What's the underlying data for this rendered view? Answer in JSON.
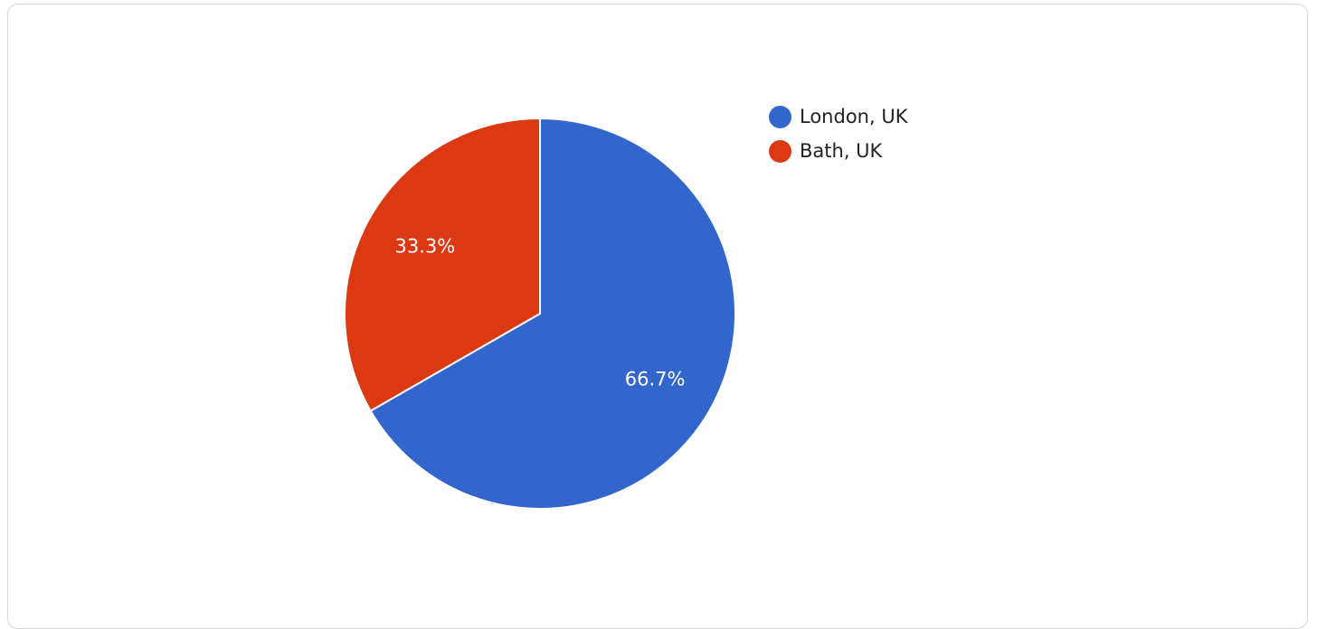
{
  "chart_data": {
    "type": "pie",
    "title": "",
    "categories": [
      "London, UK",
      "Bath, UK"
    ],
    "values": [
      66.7,
      33.3
    ],
    "labels": [
      "66.7%",
      "33.3%"
    ],
    "colors": [
      "#3366cc",
      "#dc3912"
    ],
    "legend_position": "right",
    "start_angle": "top, clockwise"
  },
  "legend": {
    "items": [
      {
        "label": "London, UK",
        "color": "#3366cc"
      },
      {
        "label": "Bath, UK",
        "color": "#dc3912"
      }
    ]
  }
}
